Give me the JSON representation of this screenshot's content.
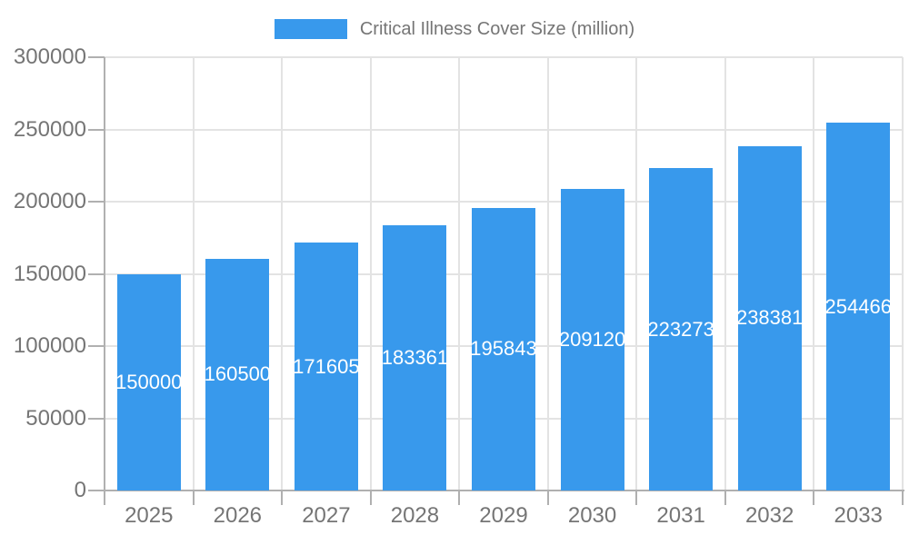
{
  "legend": {
    "label": "Critical Illness Cover Size (million)"
  },
  "colors": {
    "bar": "#3899EC",
    "grid": "#e3e3e3",
    "axis": "#b0b0b0",
    "axis_text": "#757575",
    "bar_label_text": "#ffffff",
    "background": "#ffffff"
  },
  "chart_data": {
    "type": "bar",
    "title": "Critical Illness Cover Size (million)",
    "series_name": "Critical Illness Cover Size (million)",
    "categories": [
      "2025",
      "2026",
      "2027",
      "2028",
      "2029",
      "2030",
      "2031",
      "2032",
      "2033"
    ],
    "values": [
      150000,
      160500,
      171605,
      183361,
      195843,
      209120,
      223273,
      238381,
      254466
    ],
    "value_labels": [
      "150000",
      "160500",
      "171605",
      "183361",
      "195843",
      "209120",
      "223273",
      "238381",
      "254466"
    ],
    "xlabel": "",
    "ylabel": "",
    "ylim": [
      0,
      300000
    ],
    "ytick_step": 50000,
    "yticks": [
      0,
      50000,
      100000,
      150000,
      200000,
      250000,
      300000
    ],
    "grid": true,
    "legend_position": "top",
    "bar_color": "#3899EC",
    "value_label_color": "#ffffff"
  }
}
